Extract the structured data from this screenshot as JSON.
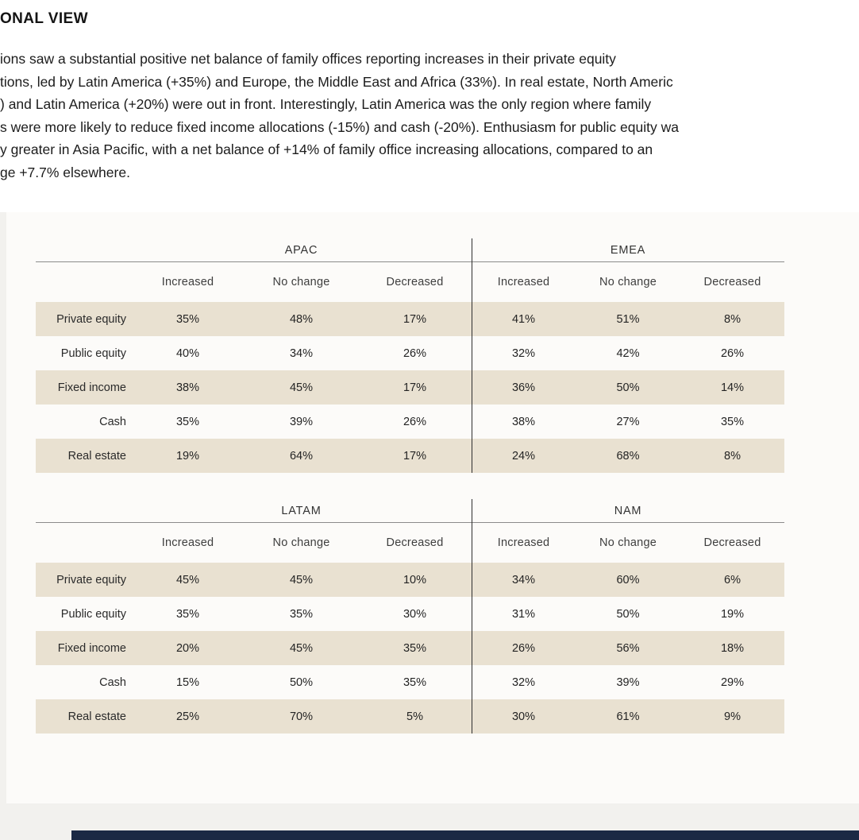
{
  "page": {
    "title": "ONAL VIEW",
    "paragraph": [
      "ions saw a substantial positive net balance of family offices reporting increases in their private equity",
      "tions, led by Latin America (+35%) and Europe, the Middle East and Africa (33%). In real estate, North Americ",
      ") and Latin America (+20%) were out in front. Interestingly, Latin America was the only region where family",
      "s were more likely to reduce fixed income allocations (-15%) and cash (-20%). Enthusiasm for public equity wa",
      "y greater in Asia Pacific, with a net balance of +14% of family office increasing allocations, compared to an",
      "ge +7.7% elsewhere."
    ]
  },
  "tables": [
    {
      "regions": [
        "APAC",
        "EMEA"
      ],
      "column_headers": [
        "Increased",
        "No change",
        "Decreased",
        "Increased",
        "No change",
        "Decreased"
      ],
      "rows": [
        {
          "label": "Private equity",
          "values": [
            "35%",
            "48%",
            "17%",
            "41%",
            "51%",
            "8%"
          ]
        },
        {
          "label": "Public equity",
          "values": [
            "40%",
            "34%",
            "26%",
            "32%",
            "42%",
            "26%"
          ]
        },
        {
          "label": "Fixed income",
          "values": [
            "38%",
            "45%",
            "17%",
            "36%",
            "50%",
            "14%"
          ]
        },
        {
          "label": "Cash",
          "values": [
            "35%",
            "39%",
            "26%",
            "38%",
            "27%",
            "35%"
          ]
        },
        {
          "label": "Real estate",
          "values": [
            "19%",
            "64%",
            "17%",
            "24%",
            "68%",
            "8%"
          ]
        }
      ]
    },
    {
      "regions": [
        "LATAM",
        "NAM"
      ],
      "column_headers": [
        "Increased",
        "No change",
        "Decreased",
        "Increased",
        "No change",
        "Decreased"
      ],
      "rows": [
        {
          "label": "Private equity",
          "values": [
            "45%",
            "45%",
            "10%",
            "34%",
            "60%",
            "6%"
          ]
        },
        {
          "label": "Public equity",
          "values": [
            "35%",
            "35%",
            "30%",
            "31%",
            "50%",
            "19%"
          ]
        },
        {
          "label": "Fixed income",
          "values": [
            "20%",
            "45%",
            "35%",
            "26%",
            "56%",
            "18%"
          ]
        },
        {
          "label": "Cash",
          "values": [
            "15%",
            "50%",
            "35%",
            "32%",
            "39%",
            "29%"
          ]
        },
        {
          "label": "Real estate",
          "values": [
            "25%",
            "70%",
            "5%",
            "30%",
            "61%",
            "9%"
          ]
        }
      ]
    }
  ],
  "colors": {
    "stripe": "#e9e1d1",
    "card": "#fcfbf9",
    "band": "#f2f1ee",
    "footer": "#1b2944"
  }
}
